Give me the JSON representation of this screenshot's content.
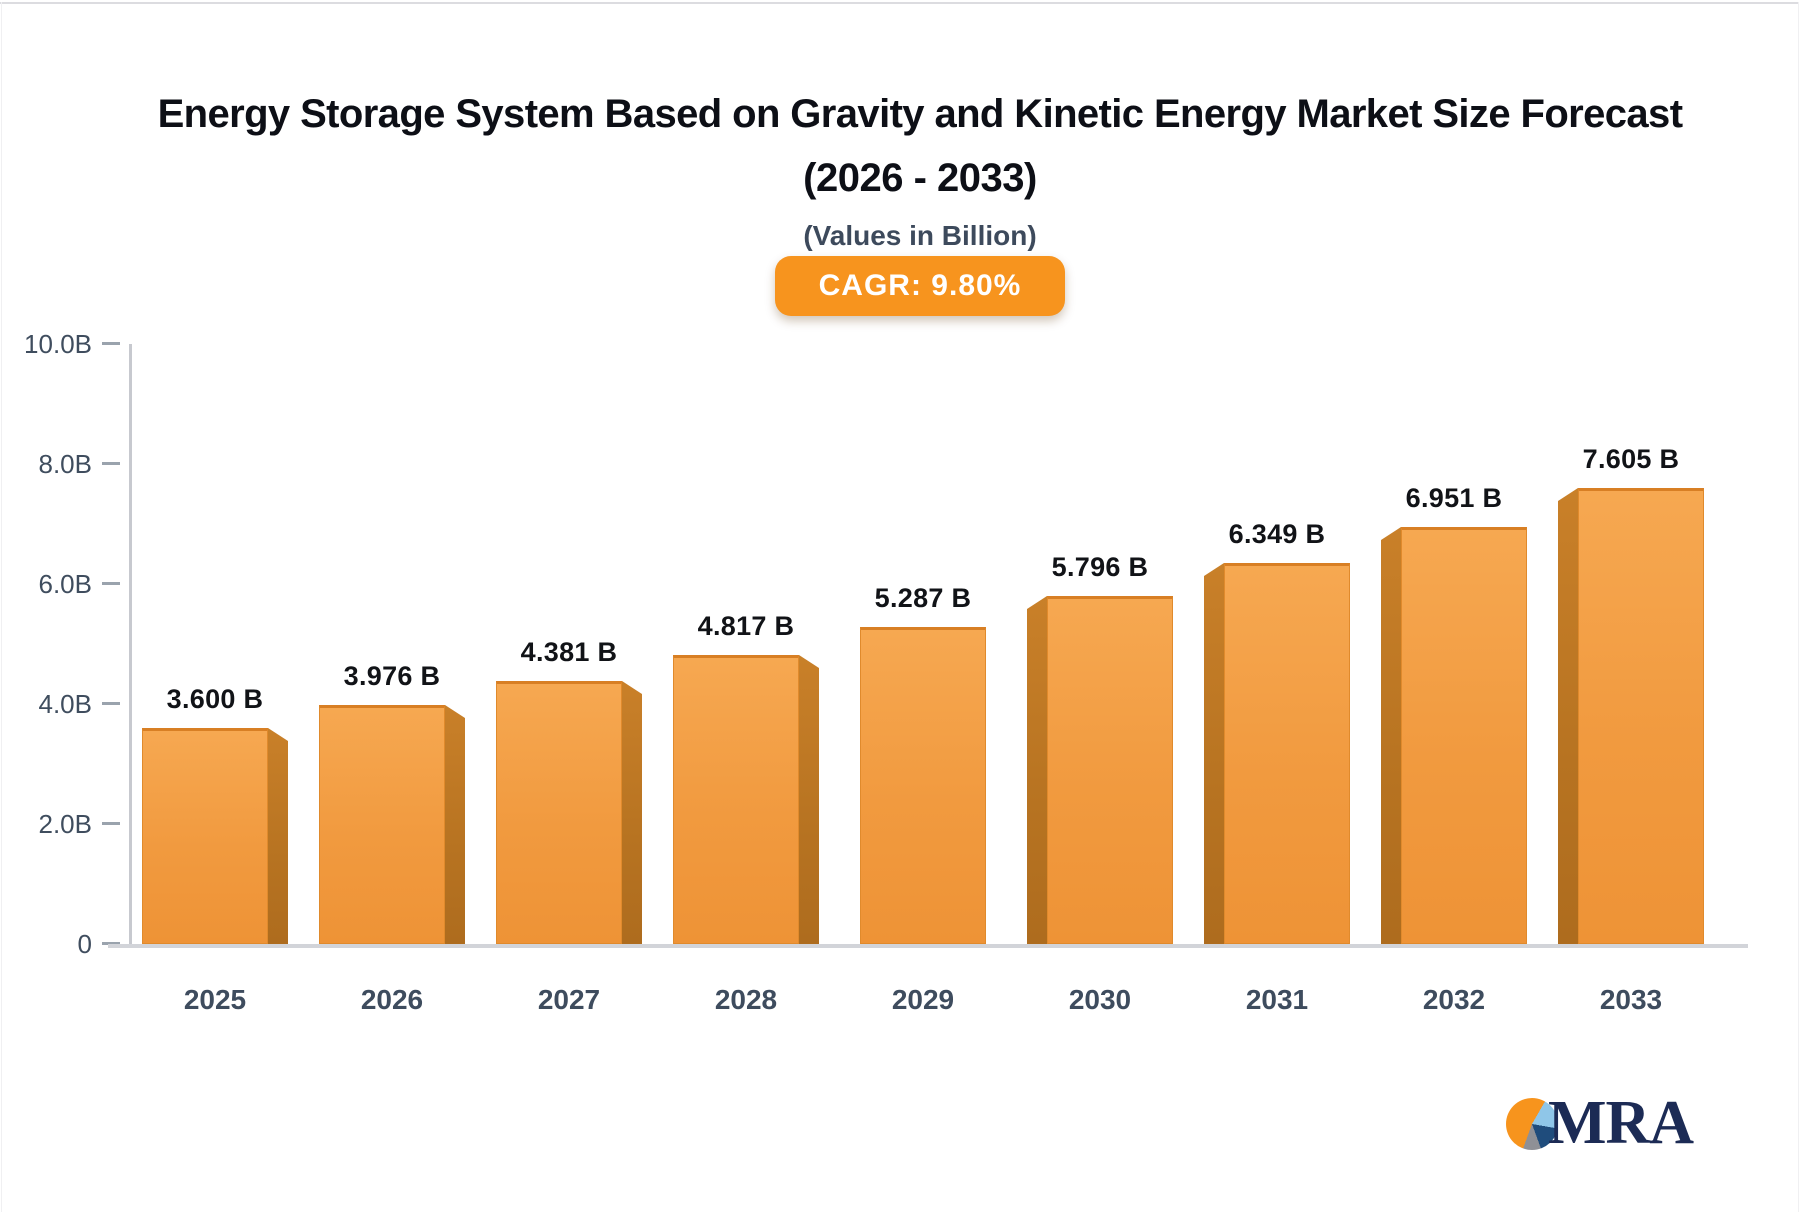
{
  "header": {
    "title_line1": "Energy Storage System Based on Gravity and Kinetic Energy Market Size Forecast",
    "title_line2": "(2026 - 2033)",
    "subtitle": "(Values in Billion)",
    "cagr_label": "CAGR: 9.80%"
  },
  "chart_data": {
    "type": "bar",
    "title": "Energy Storage System Based on Gravity and Kinetic Energy Market Size Forecast (2026 - 2033)",
    "subtitle": "(Values in Billion)",
    "cagr": "9.80%",
    "categories": [
      "2025",
      "2026",
      "2027",
      "2028",
      "2029",
      "2030",
      "2031",
      "2032",
      "2033"
    ],
    "values": [
      3.6,
      3.976,
      4.381,
      4.817,
      5.287,
      5.796,
      6.349,
      6.951,
      7.605
    ],
    "value_labels": [
      "3.600 B",
      "3.976 B",
      "4.381 B",
      "4.817 B",
      "5.287 B",
      "5.796 B",
      "6.349 B",
      "6.951 B",
      "7.605 B"
    ],
    "ylim": [
      0,
      10
    ],
    "ytick_values": [
      0,
      2,
      4,
      6,
      8,
      10
    ],
    "ytick_labels": [
      "0",
      "2.0B",
      "4.0B",
      "6.0B",
      "8.0B",
      "10.0B"
    ],
    "grid": false,
    "legend_position": "none",
    "style": "3d-perspective-bars",
    "colors": {
      "bar_face_top": "#F6A851",
      "bar_face_bottom": "#EE9336",
      "bar_edge": "#D87F24",
      "bar_side": "#BC7424",
      "axis_line": "#c7c9cf",
      "tick": "#9aa3ad",
      "axis_text": "#3f4d5e",
      "value_text": "#111317",
      "badge_bg": "#F7941E",
      "badge_text": "#ffffff"
    }
  },
  "branding": {
    "logo_text": "MRA",
    "logo_pie_colors": [
      "#F7941D",
      "#8FC6E8",
      "#1F4C7C",
      "#8F9096"
    ]
  }
}
